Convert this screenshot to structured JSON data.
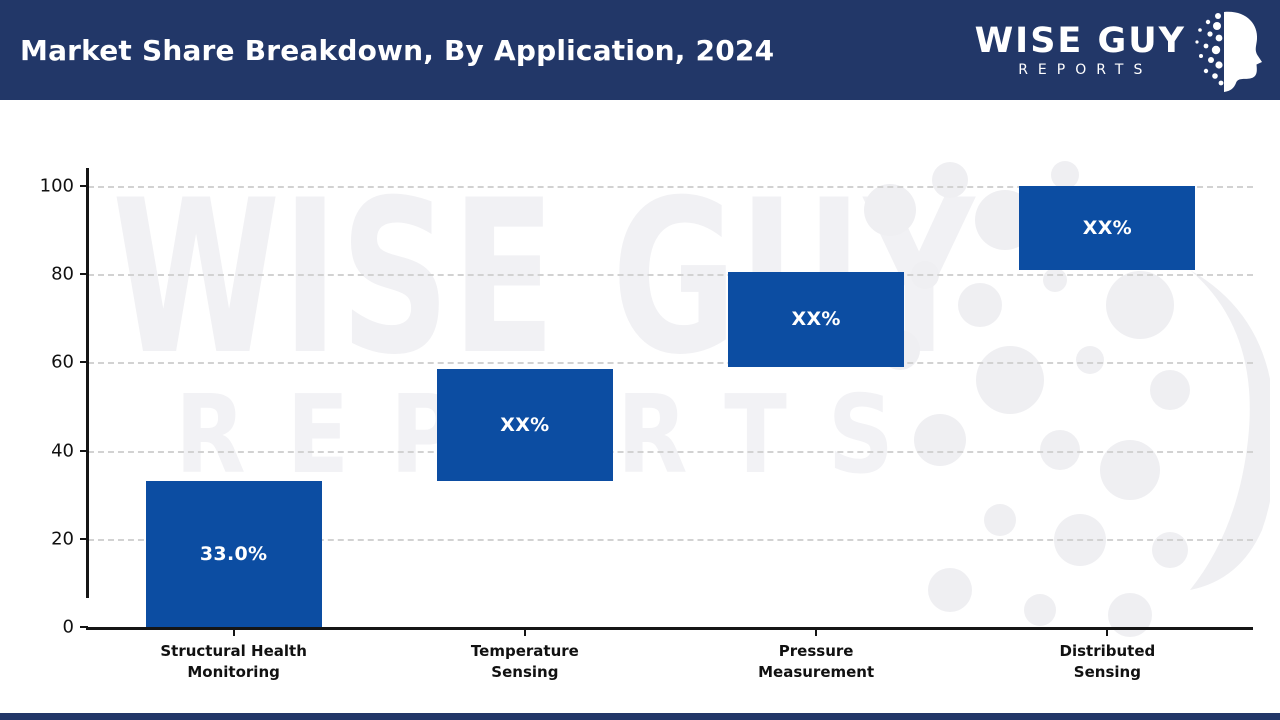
{
  "header": {
    "title": "Market Share Breakdown, By Application, 2024",
    "logo": {
      "line1": "WISE GUY",
      "line2": "REPORTS"
    }
  },
  "watermark": {
    "line1": "WISE GUY",
    "line2": "REPORTS"
  },
  "colors": {
    "header_bg": "#223768",
    "bar": "#0c4da2",
    "grid": "#d2d2d2",
    "axis": "#151515",
    "bar_label": "#ffffff",
    "watermark": "#f1f1f4"
  },
  "chart_data": {
    "type": "bar",
    "subtype": "waterfall",
    "title": "Market Share Breakdown, By Application, 2024",
    "categories": [
      "Structural Health\nMonitoring",
      "Temperature\nSensing",
      "Pressure\nMeasurement",
      "Distributed\nSensing"
    ],
    "categories_full": [
      "Structural Health Monitoring",
      "Temperature Sensing",
      "Pressure Measurement",
      "Distributed Sensing"
    ],
    "segments": [
      {
        "start": 0,
        "end": 33,
        "label": "33.0%"
      },
      {
        "start": 33,
        "end": 58.5,
        "label": "XX%"
      },
      {
        "start": 59,
        "end": 80.5,
        "label": "XX%"
      },
      {
        "start": 81,
        "end": 100,
        "label": "XX%"
      }
    ],
    "yticks": [
      0,
      20,
      40,
      60,
      80,
      100
    ],
    "ylim": [
      0,
      105
    ],
    "xlabel": "",
    "ylabel": "",
    "grid": "horizontal-dashed",
    "legend": "none"
  }
}
